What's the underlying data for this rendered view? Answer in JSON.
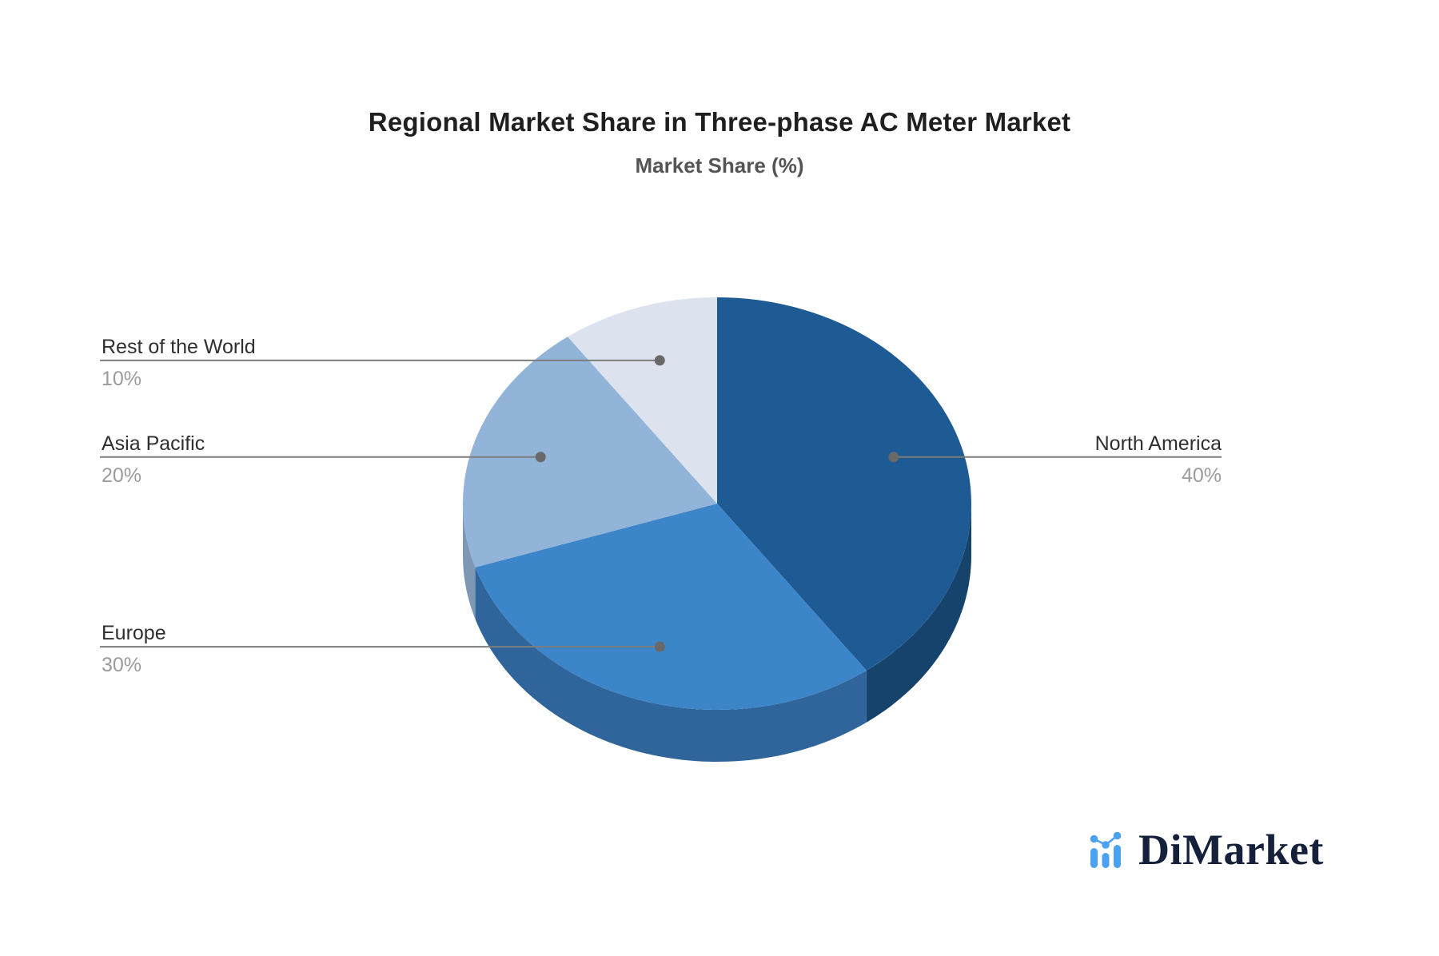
{
  "title": "Regional Market Share in Three-phase AC Meter Market",
  "subtitle": "Market Share (%)",
  "logo": {
    "text": "DiMarket",
    "icon": "bar-line-chart-icon",
    "icon_color": "#4ba1f2",
    "text_color": "#15203a"
  },
  "chart_data": {
    "type": "pie",
    "title": "Regional Market Share in Three-phase AC Meter Market",
    "subtitle": "Market Share (%)",
    "unit": "%",
    "style": "3d-pie",
    "start_angle_deg": 0,
    "direction": "clockwise",
    "legend_position": "none",
    "categories": [
      "North America",
      "Europe",
      "Asia Pacific",
      "Rest of the World"
    ],
    "values": [
      40,
      30,
      20,
      10
    ],
    "slices": [
      {
        "label": "North America",
        "value": 40,
        "display": "40%",
        "color": "#1e5a94",
        "side_color": "#16436b",
        "label_side": "right"
      },
      {
        "label": "Europe",
        "value": 30,
        "display": "30%",
        "color": "#3c85c8",
        "side_color": "#2f659a",
        "label_side": "left"
      },
      {
        "label": "Asia Pacific",
        "value": 20,
        "display": "20%",
        "color": "#93b4d9",
        "side_color": "#7d97b5",
        "label_side": "left"
      },
      {
        "label": "Rest of the World",
        "value": 10,
        "display": "10%",
        "color": "#dce3ef",
        "side_color": "#c2cbdc",
        "label_side": "left"
      }
    ],
    "label_color": "#2f2f2f",
    "value_color": "#9b9b9b",
    "connector_color": "#7d7d7d",
    "connector_dot_color": "#696969"
  }
}
